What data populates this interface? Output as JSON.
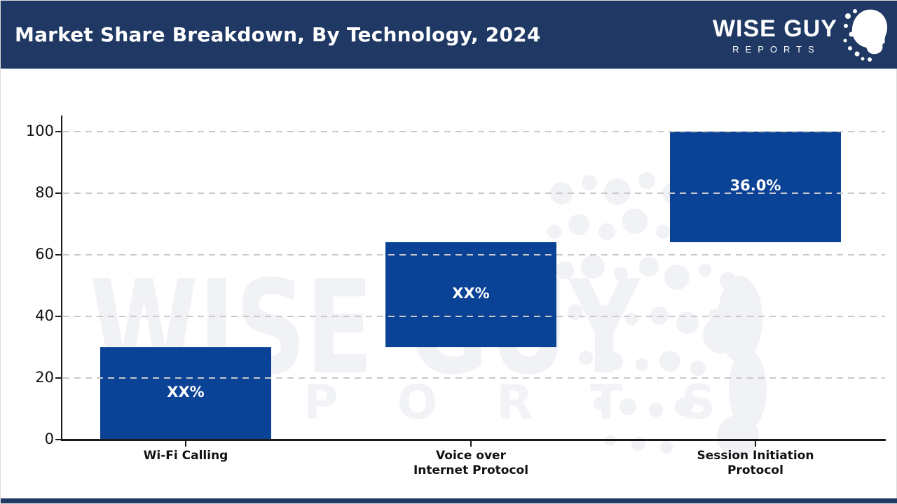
{
  "header": {
    "title": "Market Share Breakdown, By Technology, 2024",
    "logo_line1": "WISE GUY",
    "logo_line2": "REPORTS"
  },
  "watermark": {
    "line1": "WISE GUY",
    "line2": "REPORTS"
  },
  "chart_data": {
    "type": "bar",
    "subtype": "waterfall",
    "title": "Market Share Breakdown, By Technology, 2024",
    "categories": [
      [
        "Wi-Fi Calling"
      ],
      [
        "Voice over",
        "Internet Protocol"
      ],
      [
        "Session Initiation",
        "Protocol"
      ]
    ],
    "segments": [
      {
        "category": "Wi-Fi Calling",
        "start": 0,
        "end": 30,
        "label": "XX%"
      },
      {
        "category": "Voice over Internet Protocol",
        "start": 30,
        "end": 64,
        "label": "XX%"
      },
      {
        "category": "Session Initiation Protocol",
        "start": 64,
        "end": 100,
        "label": "36.0%"
      }
    ],
    "values": [
      30,
      34,
      36
    ],
    "yticks": [
      0,
      20,
      40,
      60,
      80,
      100
    ],
    "ylim": [
      0,
      100
    ],
    "xlabel": "",
    "ylabel": "",
    "legend": "none",
    "grid": "horizontal-dashed-over-bars",
    "colors": {
      "bar": "#0a4296",
      "grid": "#c9c9c9",
      "axis": "#1a1a1a",
      "bar_label": "#ffffff",
      "tick_label": "#111111"
    }
  },
  "theme": {
    "header_bg": "#1f3864",
    "footer_bg": "#1f3864",
    "page_bg": "#ffffff",
    "watermark_color": "#f1f2f5"
  }
}
